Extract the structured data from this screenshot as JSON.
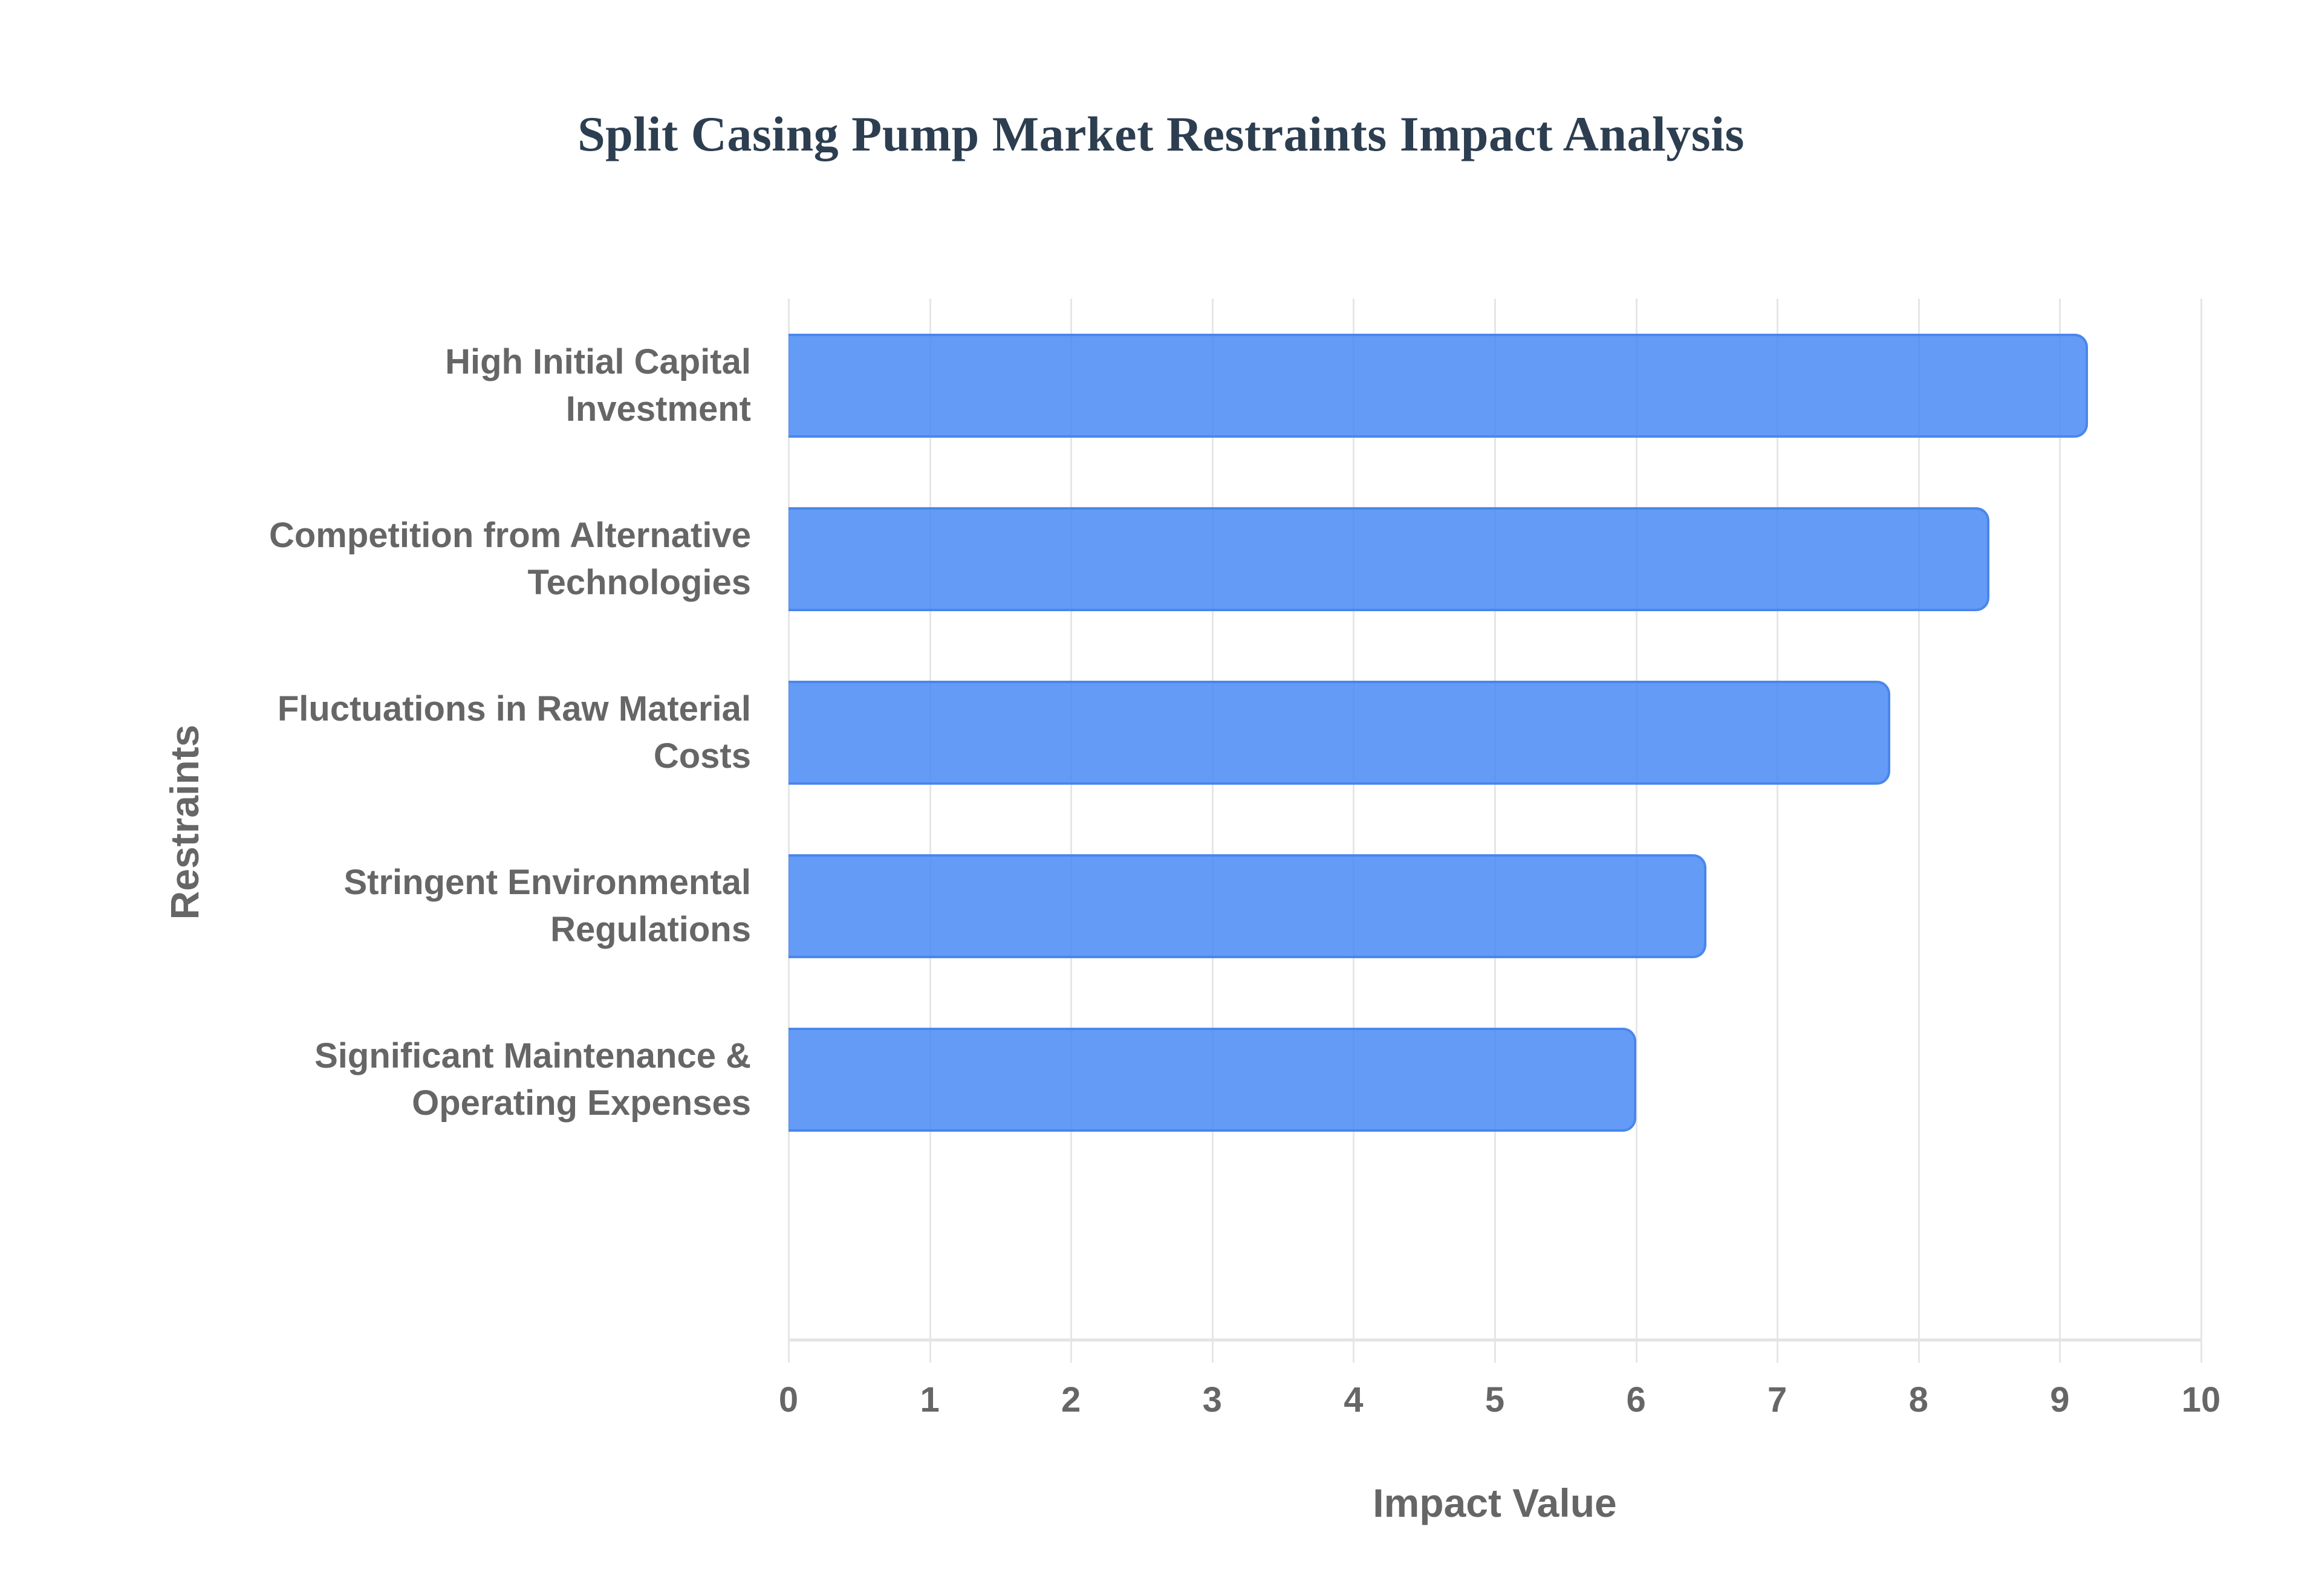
{
  "chart_data": {
    "type": "bar",
    "orientation": "horizontal",
    "title": "Split Casing Pump Market Restraints Impact Analysis",
    "xlabel": "Impact Value",
    "ylabel": "Restraints",
    "categories": [
      "High Initial Capital Investment",
      "Competition from Alternative Technologies",
      "Fluctuations in Raw Material Costs",
      "Stringent Environmental Regulations",
      "Significant Maintenance & Operating Expenses"
    ],
    "category_lines": [
      [
        "High Initial Capital",
        "Investment"
      ],
      [
        "Competition from Alternative",
        "Technologies"
      ],
      [
        "Fluctuations in Raw Material",
        "Costs"
      ],
      [
        "Stringent Environmental",
        "Regulations"
      ],
      [
        "Significant Maintenance &",
        "Operating Expenses"
      ]
    ],
    "values": [
      9.2,
      8.5,
      7.8,
      6.5,
      6.0
    ],
    "xlim": [
      0,
      10
    ],
    "x_ticks": [
      "0",
      "1",
      "2",
      "3",
      "4",
      "5",
      "6",
      "7",
      "8",
      "9",
      "10"
    ],
    "grid": true,
    "legend": "none",
    "bar_color": "#4285f4",
    "title_color": "#2c3e50",
    "label_color": "#666666"
  }
}
